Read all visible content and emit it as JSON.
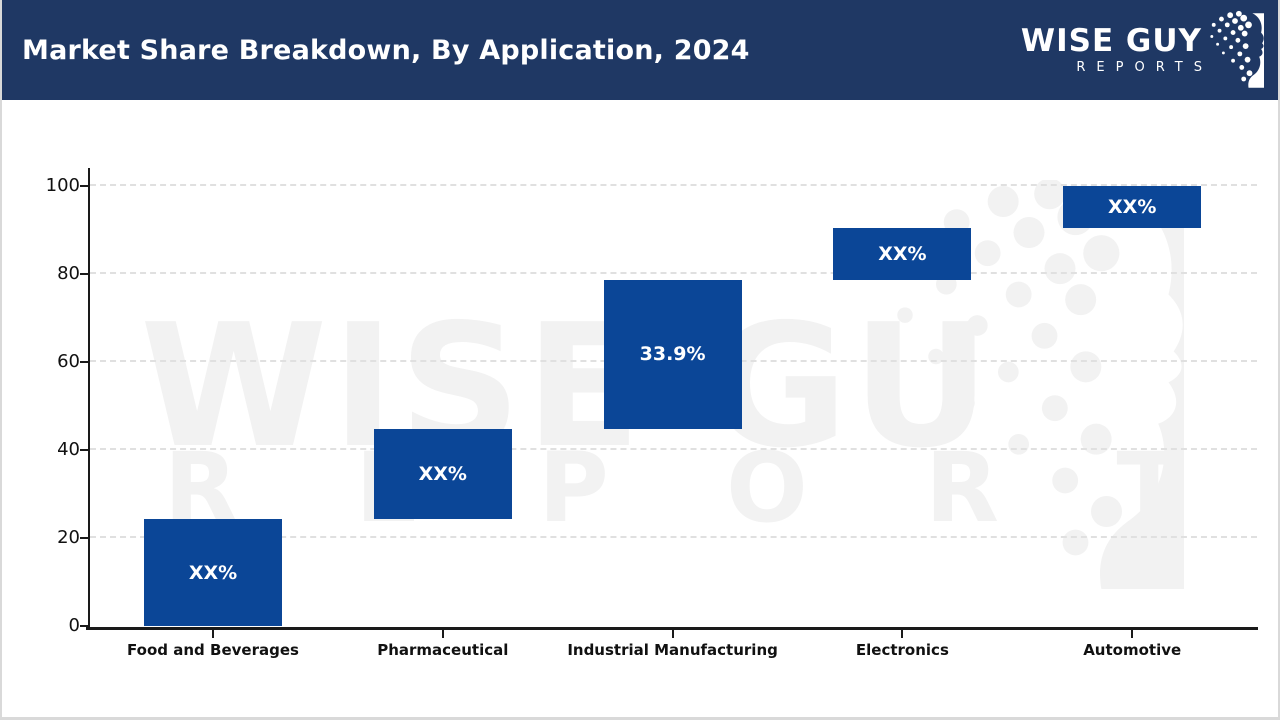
{
  "header": {
    "title": "Market Share Breakdown, By Application, 2024",
    "bg_color": "#1f3864",
    "logo": {
      "line1": "WISE GUY",
      "line2": "REPORTS"
    }
  },
  "watermark": {
    "line1": "WISE GU",
    "line2": "R E P O R T"
  },
  "chart_data": {
    "type": "bar",
    "subtype": "waterfall",
    "title": "Market Share Breakdown, By Application, 2024",
    "categories": [
      "Food and Beverages",
      "Pharmaceutical",
      "Industrial Manufacturing",
      "Electronics",
      "Automotive"
    ],
    "segments": [
      {
        "category": "Food and Beverages",
        "start": 0,
        "end": 24.3,
        "label": "XX%"
      },
      {
        "category": "Pharmaceutical",
        "start": 24.3,
        "end": 44.8,
        "label": "XX%"
      },
      {
        "category": "Industrial Manufacturing",
        "start": 44.8,
        "end": 78.7,
        "label": "33.9%"
      },
      {
        "category": "Electronics",
        "start": 78.7,
        "end": 90.5,
        "label": "XX%"
      },
      {
        "category": "Automotive",
        "start": 90.5,
        "end": 100,
        "label": "XX%"
      }
    ],
    "yticks": [
      0,
      20,
      40,
      60,
      80,
      100
    ],
    "ylim": [
      0,
      103.6
    ],
    "xlabel": "",
    "ylabel": "",
    "bar_color": "#0b4697",
    "grid": "horizontal-dashed",
    "legend": "none"
  },
  "colors": {
    "header_bg": "#1f3864",
    "bar": "#0b4697",
    "watermark": "#f2f2f2",
    "gridline": "#e0e0e0",
    "axis": "#1a1a1a",
    "figure_border": "#d9d9d9"
  }
}
